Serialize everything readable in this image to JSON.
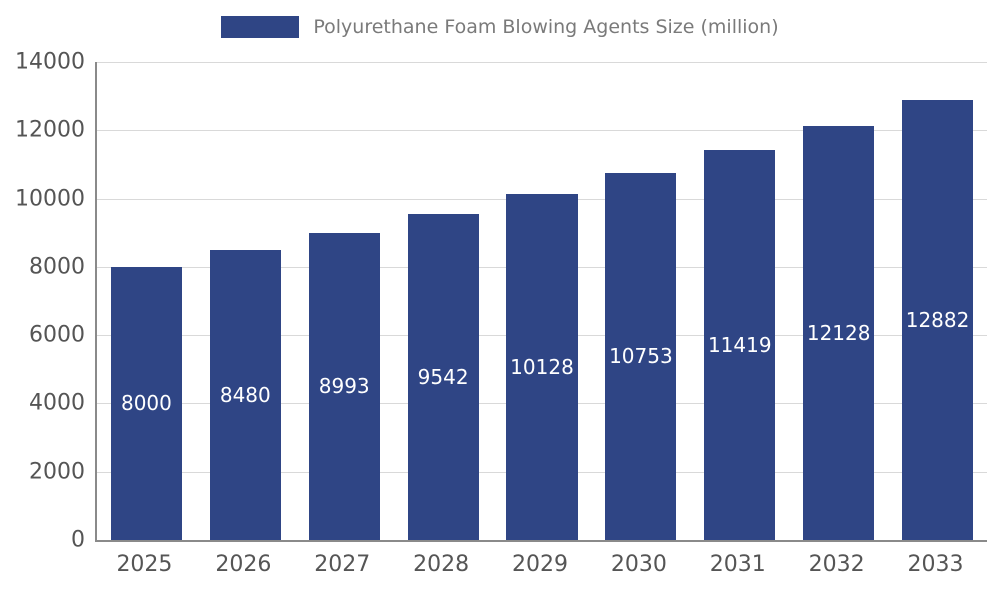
{
  "chart_data": {
    "type": "bar",
    "title": "Polyurethane Foam Blowing Agents Size (million)",
    "categories": [
      "2025",
      "2026",
      "2027",
      "2028",
      "2029",
      "2030",
      "2031",
      "2032",
      "2033"
    ],
    "values": [
      8000,
      8480,
      8993,
      9542,
      10128,
      10753,
      11419,
      12128,
      12882
    ],
    "xlabel": "",
    "ylabel": "",
    "ylim": [
      0,
      14000
    ],
    "yticks": [
      0,
      2000,
      4000,
      6000,
      8000,
      10000,
      12000,
      14000
    ],
    "grid": true,
    "legend_position": "top-center",
    "bar_color": "#2f4585",
    "value_label_color": "#ffffff",
    "tick_label_color": "#555555",
    "legend_text_color": "#7a7a7a"
  }
}
